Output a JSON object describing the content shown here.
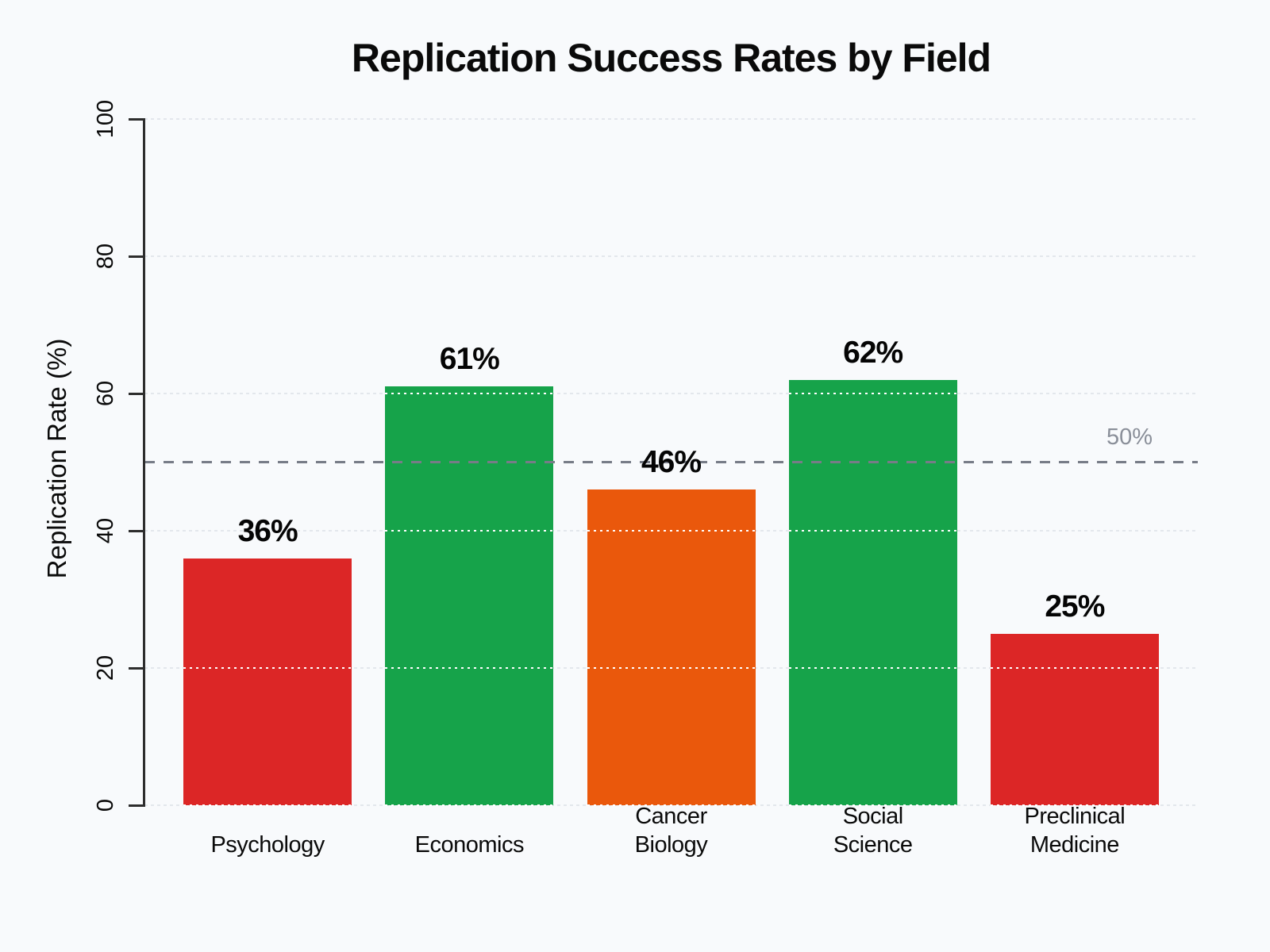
{
  "title": "Replication Success Rates by Field",
  "chart_data": {
    "type": "bar",
    "title": "Replication Success Rates by Field",
    "xlabel": "",
    "ylabel": "Replication Rate (%)",
    "categories": [
      "Psychology",
      "Economics",
      "Cancer\nBiology",
      "Social\nScience",
      "Preclinical\nMedicine"
    ],
    "values": [
      36,
      61,
      46,
      62,
      25
    ],
    "value_labels": [
      "36%",
      "61%",
      "46%",
      "62%",
      "25%"
    ],
    "bar_colors": [
      "#dc2626",
      "#16a34a",
      "#ea580c",
      "#16a34a",
      "#dc2626"
    ],
    "ylim": [
      0,
      100
    ],
    "yticks": [
      0,
      20,
      40,
      60,
      80,
      100
    ],
    "ytick_labels": [
      "0",
      "20",
      "40",
      "60",
      "80",
      "100"
    ],
    "grid": "horizontal, light dashed behind bars, white dotted over bars",
    "legend": "none",
    "reference_line": {
      "y": 50,
      "label": "50%",
      "style": "dashed"
    }
  },
  "colors": {
    "background": "#f8fafc",
    "axis": "#2d2d2d",
    "grid": "#e3e7ec",
    "grid_over_bars": "#ffffff",
    "reference_line": "#777c87",
    "reference_label": "#8a8f99",
    "text": "#0a0a0a",
    "bar_red": "#dc2626",
    "bar_green": "#16a34a",
    "bar_orange": "#ea580c"
  }
}
